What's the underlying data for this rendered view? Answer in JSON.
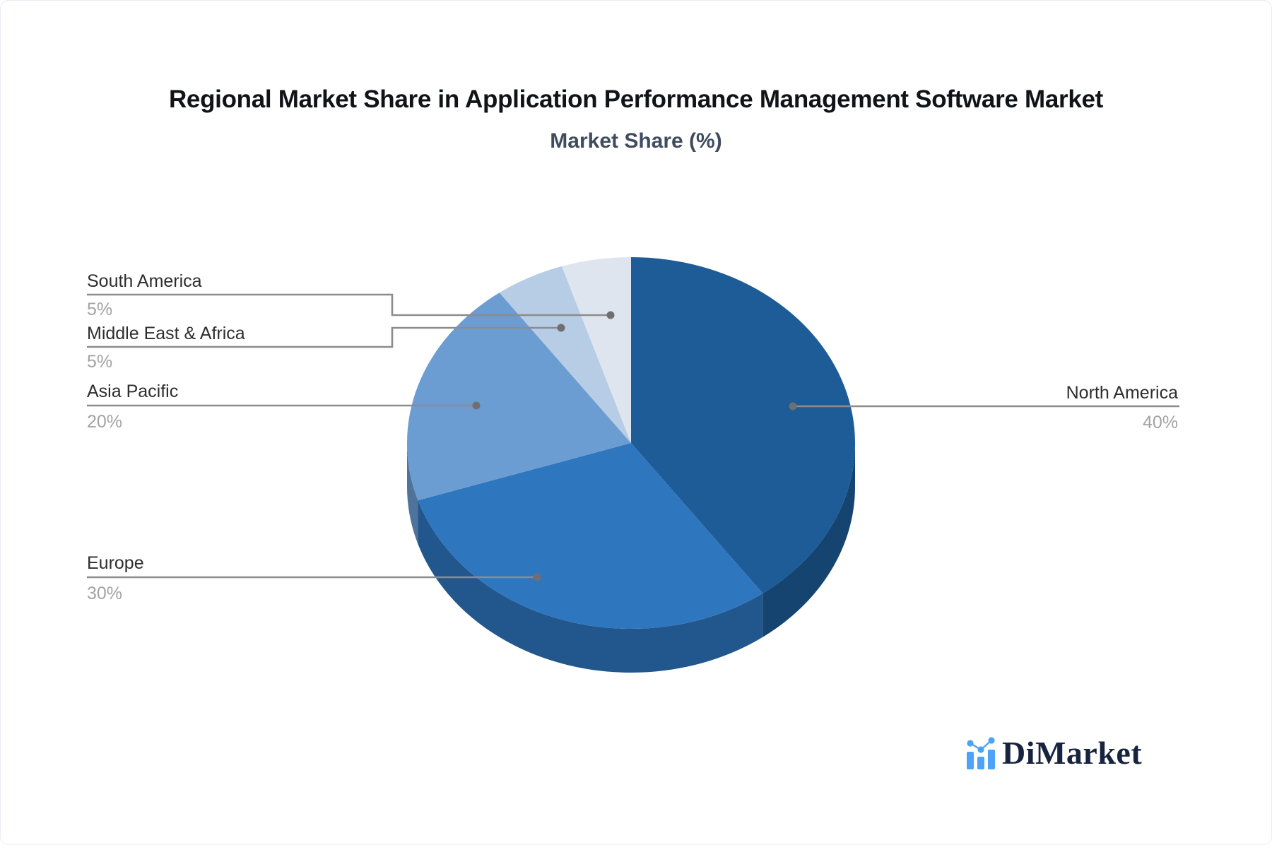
{
  "header": {
    "title": "Regional Market Share in Application Performance Management Software Market",
    "subtitle": "Market Share (%)"
  },
  "chart_data": {
    "type": "pie",
    "style": "3d",
    "title": "Regional Market Share in Application Performance Management Software Market",
    "subtitle": "Market Share (%)",
    "unit": "%",
    "start_angle": "12-oclock",
    "direction": "clockwise",
    "legend_position": "callout-labels",
    "slices": [
      {
        "id": "north-america",
        "label": "North America",
        "value": 40,
        "value_label": "40%",
        "color": "#1E5C97"
      },
      {
        "id": "europe",
        "label": "Europe",
        "value": 30,
        "value_label": "30%",
        "color": "#2E76BE"
      },
      {
        "id": "asia-pacific",
        "label": "Asia Pacific",
        "value": 20,
        "value_label": "20%",
        "color": "#6B9CD2"
      },
      {
        "id": "middle-east-africa",
        "label": "Middle East & Africa",
        "value": 5,
        "value_label": "5%",
        "color": "#B7CCE5"
      },
      {
        "id": "south-america",
        "label": "South America",
        "value": 5,
        "value_label": "5%",
        "color": "#DFE5EF"
      }
    ],
    "leader_line_color": "#8C8C8C",
    "label_text_color": "#2E2E2E",
    "value_text_color": "#A3A3A3"
  },
  "logo": {
    "text": "DiMarket",
    "icon": "bar-chart-trend-icon",
    "icon_color": "#4DA3F7",
    "text_color": "#172440"
  }
}
